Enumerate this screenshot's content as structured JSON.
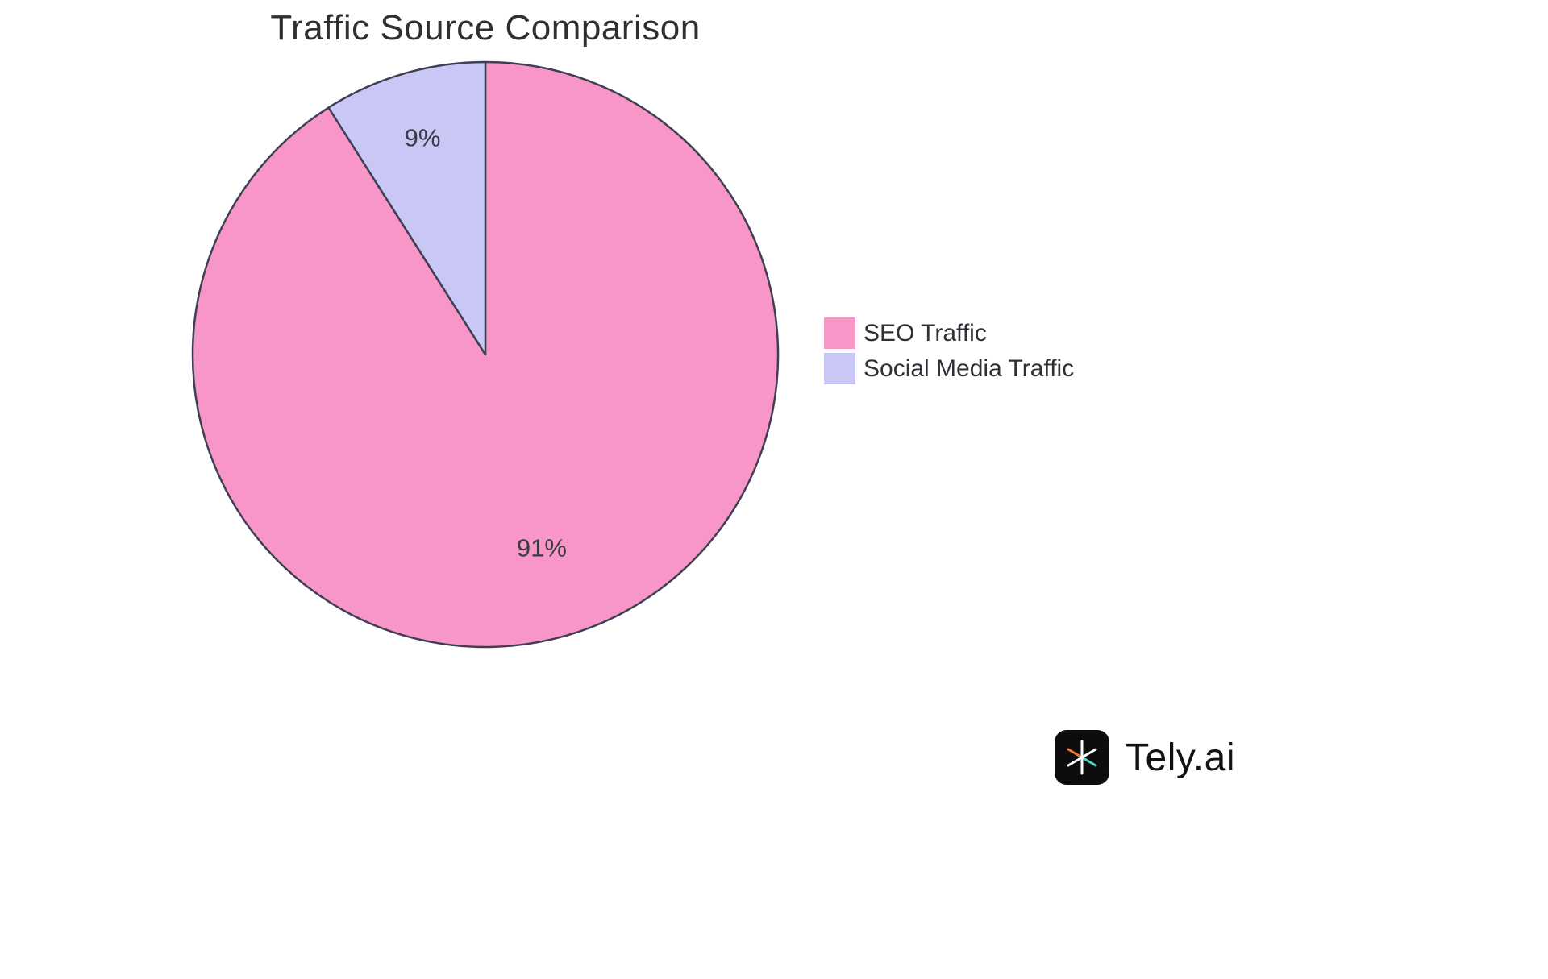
{
  "page": {
    "background": "#ffffff"
  },
  "chart_data": {
    "type": "pie",
    "title": "Traffic Source Comparison",
    "labels": [
      "SEO Traffic",
      "Social Media Traffic"
    ],
    "values": [
      91,
      9
    ],
    "percent_labels": [
      "91%",
      "9%"
    ],
    "colors": [
      "#F897C7",
      "#C9C7F5"
    ],
    "stroke_color": "#3E3F54",
    "label_color": "#3a3c44",
    "start_angle_deg": 0,
    "direction": "clockwise",
    "legend_position": "right",
    "grid": false
  },
  "branding": {
    "wordmark": "Tely.ai",
    "icon": "asterisk-starburst",
    "icon_bg": "#0d0d0d",
    "icon_accent_left": "#F2762E",
    "icon_accent_right": "#4FD6C8"
  }
}
